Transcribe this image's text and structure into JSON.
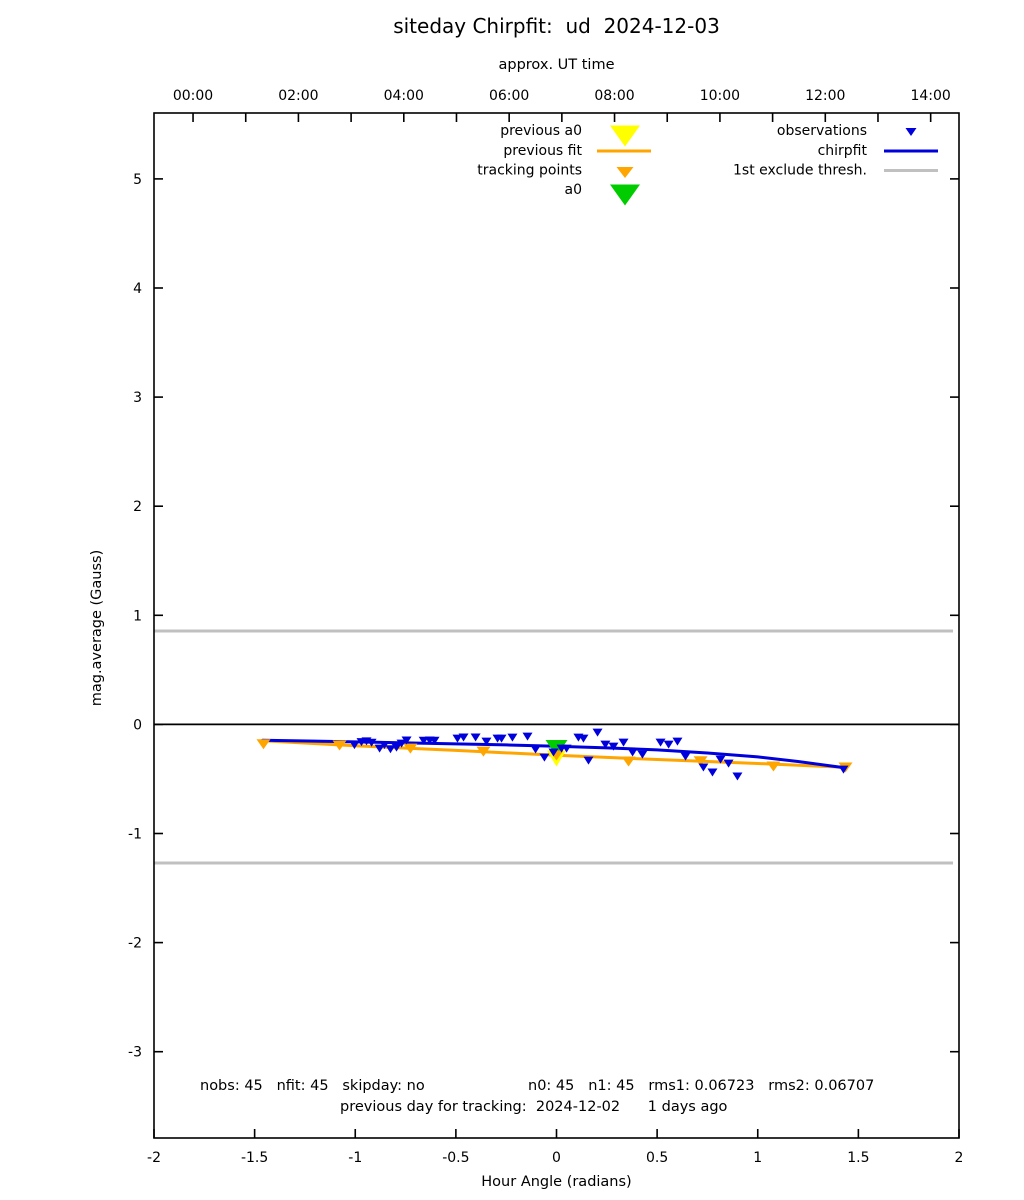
{
  "title": "siteday Chirpfit:  ud  2024-12-03",
  "stats": {
    "nobs": 45,
    "nfit": 45,
    "skipday": "no",
    "n0": 45,
    "n1": 45,
    "rms1": 0.06723,
    "rms2": 0.06707,
    "previous_day_for_tracking": "2024-12-02",
    "days_ago": "1 days ago",
    "line1_left": "nobs: 45   nfit: 45   skipday: no",
    "line1_right": "n0: 45   n1: 45   rms1: 0.06723   rms2: 0.06707",
    "line2": "previous day for tracking:  2024-12-02      1 days ago"
  },
  "legend": {
    "columns": [
      {
        "entries": [
          {
            "label": "previous a0",
            "marker": "big-triangle",
            "color": "#ffff00"
          },
          {
            "label": "previous fit",
            "marker": "line",
            "color": "#ffa500"
          },
          {
            "label": "tracking points",
            "marker": "small-triangle",
            "color": "#ffa500"
          },
          {
            "label": "a0",
            "marker": "big-triangle",
            "color": "#00cc00"
          }
        ]
      },
      {
        "entries": [
          {
            "label": "observations",
            "marker": "tiny-triangle",
            "color": "#0000dd"
          },
          {
            "label": "chirpfit",
            "marker": "line",
            "color": "#0000dd"
          },
          {
            "label": "1st exclude thresh.",
            "marker": "line",
            "color": "#c0c0c0"
          }
        ]
      }
    ]
  },
  "chart_data": {
    "type": "scatter",
    "title": "siteday Chirpfit:  ud  2024-12-03",
    "xlabel": "Hour Angle (radians)",
    "ylabel": "mag.average (Gauss)",
    "x2label": "approx. UT time",
    "xlim": [
      -2,
      2
    ],
    "ylim": [
      -3.791,
      5.604
    ],
    "x_ticks": [
      -2,
      -1.5,
      -1,
      -0.5,
      0,
      0.5,
      1,
      1.5,
      2
    ],
    "x_tick_labels": [
      "-2",
      "-1.5",
      "-1",
      "-0.5",
      "0",
      "0.5",
      "1",
      "1.5",
      "2"
    ],
    "y_ticks": [
      -3,
      -2,
      -1,
      0,
      1,
      2,
      3,
      4,
      5
    ],
    "top_axis": {
      "hours_start": 0,
      "hours_end": 14,
      "label_every_hours": 2,
      "ha_at_hour0": -1.806,
      "rad_per_hour": 0.2618,
      "tick_labels": [
        "00:00",
        "02:00",
        "04:00",
        "06:00",
        "08:00",
        "10:00",
        "12:00",
        "14:00"
      ]
    },
    "grid": false,
    "zero_line_y": 0,
    "exclude_thresholds": [
      0.856,
      -1.27
    ],
    "colors": {
      "blue": "#0000dd",
      "orange": "#ffa500",
      "yellow": "#ffff00",
      "green": "#00cc00",
      "gray": "#c0c0c0",
      "black": "#000000"
    },
    "series": {
      "observations": {
        "label": "observations",
        "color": "#0000dd",
        "marker": "tiny-triangle",
        "points": [
          [
            -1.004,
            -0.19
          ],
          [
            -0.969,
            -0.163
          ],
          [
            -0.944,
            -0.156
          ],
          [
            -0.919,
            -0.168
          ],
          [
            -0.879,
            -0.222
          ],
          [
            -0.855,
            -0.19
          ],
          [
            -0.825,
            -0.228
          ],
          [
            -0.795,
            -0.213
          ],
          [
            -0.77,
            -0.176
          ],
          [
            -0.745,
            -0.148
          ],
          [
            -0.66,
            -0.15
          ],
          [
            -0.63,
            -0.148
          ],
          [
            -0.606,
            -0.15
          ],
          [
            -0.492,
            -0.13
          ],
          [
            -0.462,
            -0.12
          ],
          [
            -0.402,
            -0.12
          ],
          [
            -0.348,
            -0.158
          ],
          [
            -0.293,
            -0.13
          ],
          [
            -0.273,
            -0.13
          ],
          [
            -0.219,
            -0.121
          ],
          [
            -0.144,
            -0.112
          ],
          [
            -0.104,
            -0.23
          ],
          [
            -0.06,
            -0.305
          ],
          [
            -0.015,
            -0.258
          ],
          [
            0.025,
            -0.222
          ],
          [
            0.05,
            -0.222
          ],
          [
            0.109,
            -0.121
          ],
          [
            0.134,
            -0.13
          ],
          [
            0.159,
            -0.332
          ],
          [
            0.204,
            -0.075
          ],
          [
            0.243,
            -0.185
          ],
          [
            0.283,
            -0.204
          ],
          [
            0.333,
            -0.167
          ],
          [
            0.378,
            -0.258
          ],
          [
            0.427,
            -0.277
          ],
          [
            0.517,
            -0.167
          ],
          [
            0.557,
            -0.185
          ],
          [
            0.601,
            -0.158
          ],
          [
            0.641,
            -0.295
          ],
          [
            0.73,
            -0.395
          ],
          [
            0.775,
            -0.441
          ],
          [
            0.815,
            -0.323
          ],
          [
            0.855,
            -0.36
          ],
          [
            0.899,
            -0.478
          ],
          [
            1.426,
            -0.414
          ]
        ]
      },
      "chirpfit": {
        "label": "chirpfit",
        "color": "#0000dd",
        "line": [
          [
            -1.46,
            -0.145
          ],
          [
            -1.2,
            -0.153
          ],
          [
            -1.0,
            -0.16
          ],
          [
            -0.75,
            -0.169
          ],
          [
            -0.5,
            -0.178
          ],
          [
            -0.25,
            -0.188
          ],
          [
            0.0,
            -0.2
          ],
          [
            0.25,
            -0.215
          ],
          [
            0.5,
            -0.233
          ],
          [
            0.75,
            -0.262
          ],
          [
            1.0,
            -0.298
          ],
          [
            1.2,
            -0.34
          ],
          [
            1.44,
            -0.4
          ]
        ]
      },
      "previous_fit": {
        "label": "previous fit",
        "color": "#ffa500",
        "line": [
          [
            -1.46,
            -0.15
          ],
          [
            -1.0,
            -0.196
          ],
          [
            -0.5,
            -0.238
          ],
          [
            0.0,
            -0.283
          ],
          [
            0.5,
            -0.322
          ],
          [
            1.0,
            -0.358
          ],
          [
            1.44,
            -0.394
          ]
        ]
      },
      "tracking_points": {
        "label": "tracking points",
        "color": "#ffa500",
        "marker": "small-triangle",
        "points": [
          [
            -1.456,
            -0.182
          ],
          [
            -1.078,
            -0.193
          ],
          [
            -0.726,
            -0.222
          ],
          [
            -0.363,
            -0.25
          ],
          [
            0.0,
            -0.285
          ],
          [
            0.358,
            -0.34
          ],
          [
            0.716,
            -0.338
          ],
          [
            1.078,
            -0.386
          ],
          [
            1.436,
            -0.395
          ]
        ]
      },
      "a0": {
        "label": "a0",
        "color": "#00cc00",
        "marker": "big-triangle",
        "point": [
          0.0,
          -0.216
        ]
      },
      "previous_a0": {
        "label": "previous a0",
        "color": "#ffff00",
        "marker": "big-triangle",
        "point": [
          0.0,
          -0.313
        ]
      },
      "exclude_threshold": {
        "label": "1st exclude thresh.",
        "color": "#c0c0c0"
      }
    }
  }
}
